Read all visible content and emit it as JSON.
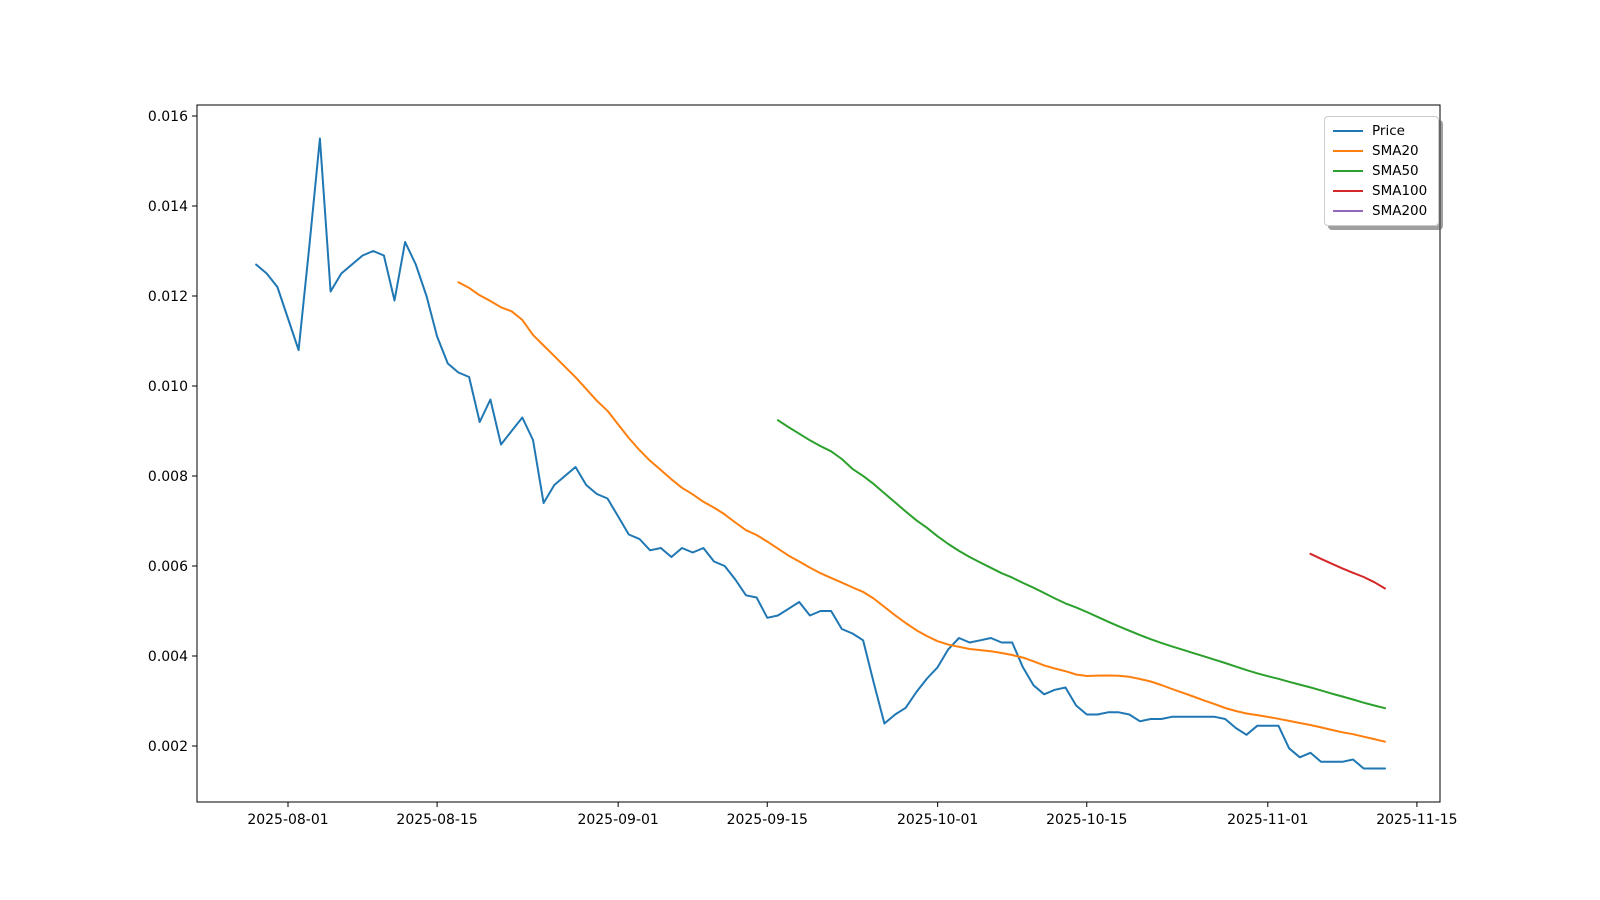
{
  "figure": {
    "background": "#ffffff",
    "axis_color": "#000000"
  },
  "chart_data": {
    "type": "line",
    "title": "",
    "xlabel": "",
    "ylabel": "",
    "grid": false,
    "legend_position": "upper right",
    "ylim": [
      0.00077,
      0.01625
    ],
    "xlim": [
      "2025-07-23",
      "2025-11-17"
    ],
    "x_tick_labels": [
      "2025-08-01",
      "2025-08-15",
      "2025-09-01",
      "2025-09-15",
      "2025-10-01",
      "2025-10-15",
      "2025-11-01",
      "2025-11-15"
    ],
    "y_tick_labels": [
      "0.002",
      "0.004",
      "0.006",
      "0.008",
      "0.010",
      "0.012",
      "0.014",
      "0.016"
    ],
    "x": [
      "2025-07-29",
      "2025-07-30",
      "2025-07-31",
      "2025-08-01",
      "2025-08-02",
      "2025-08-03",
      "2025-08-04",
      "2025-08-05",
      "2025-08-06",
      "2025-08-07",
      "2025-08-08",
      "2025-08-09",
      "2025-08-10",
      "2025-08-11",
      "2025-08-12",
      "2025-08-13",
      "2025-08-14",
      "2025-08-15",
      "2025-08-16",
      "2025-08-17",
      "2025-08-18",
      "2025-08-19",
      "2025-08-20",
      "2025-08-21",
      "2025-08-22",
      "2025-08-23",
      "2025-08-24",
      "2025-08-25",
      "2025-08-26",
      "2025-08-27",
      "2025-08-28",
      "2025-08-29",
      "2025-08-30",
      "2025-08-31",
      "2025-09-01",
      "2025-09-02",
      "2025-09-03",
      "2025-09-04",
      "2025-09-05",
      "2025-09-06",
      "2025-09-07",
      "2025-09-08",
      "2025-09-09",
      "2025-09-10",
      "2025-09-11",
      "2025-09-12",
      "2025-09-13",
      "2025-09-14",
      "2025-09-15",
      "2025-09-16",
      "2025-09-17",
      "2025-09-18",
      "2025-09-19",
      "2025-09-20",
      "2025-09-21",
      "2025-09-22",
      "2025-09-23",
      "2025-09-24",
      "2025-09-25",
      "2025-09-26",
      "2025-09-27",
      "2025-09-28",
      "2025-09-29",
      "2025-09-30",
      "2025-10-01",
      "2025-10-02",
      "2025-10-03",
      "2025-10-04",
      "2025-10-05",
      "2025-10-06",
      "2025-10-07",
      "2025-10-08",
      "2025-10-09",
      "2025-10-10",
      "2025-10-11",
      "2025-10-12",
      "2025-10-13",
      "2025-10-14",
      "2025-10-15",
      "2025-10-16",
      "2025-10-17",
      "2025-10-18",
      "2025-10-19",
      "2025-10-20",
      "2025-10-21",
      "2025-10-22",
      "2025-10-23",
      "2025-10-24",
      "2025-10-25",
      "2025-10-26",
      "2025-10-27",
      "2025-10-28",
      "2025-10-29",
      "2025-10-30",
      "2025-10-31",
      "2025-11-01",
      "2025-11-02",
      "2025-11-03",
      "2025-11-04",
      "2025-11-05",
      "2025-11-06",
      "2025-11-07",
      "2025-11-08",
      "2025-11-09",
      "2025-11-10",
      "2025-11-11",
      "2025-11-12"
    ],
    "series": [
      {
        "name": "Price",
        "color": "#1f77b4",
        "kind": "price",
        "values": [
          0.0127,
          0.0125,
          0.0122,
          0.0115,
          0.0108,
          0.0131,
          0.0155,
          0.0121,
          0.0125,
          0.0127,
          0.0129,
          0.013,
          0.0129,
          0.0119,
          0.0132,
          0.0127,
          0.012,
          0.0111,
          0.0105,
          0.0103,
          0.0102,
          0.0092,
          0.0097,
          0.0087,
          0.009,
          0.0093,
          0.0088,
          0.0074,
          0.0078,
          0.008,
          0.0082,
          0.0078,
          0.0076,
          0.0075,
          0.0071,
          0.0067,
          0.0066,
          0.00635,
          0.0064,
          0.0062,
          0.0064,
          0.0063,
          0.0064,
          0.0061,
          0.006,
          0.0057,
          0.00535,
          0.0053,
          0.00485,
          0.0049,
          0.00505,
          0.0052,
          0.0049,
          0.005,
          0.005,
          0.0046,
          0.0045,
          0.00435,
          0.0034,
          0.0025,
          0.0027,
          0.00285,
          0.0032,
          0.0035,
          0.00375,
          0.00415,
          0.0044,
          0.0043,
          0.00435,
          0.0044,
          0.0043,
          0.0043,
          0.00375,
          0.00335,
          0.00315,
          0.00325,
          0.0033,
          0.0029,
          0.0027,
          0.0027,
          0.00275,
          0.00275,
          0.0027,
          0.00255,
          0.0026,
          0.0026,
          0.00265,
          0.00265,
          0.00265,
          0.00265,
          0.00265,
          0.0026,
          0.0024,
          0.00225,
          0.00245,
          0.00245,
          0.00245,
          0.00195,
          0.00175,
          0.00185,
          0.00165,
          0.00165,
          0.00165,
          0.0017,
          0.0015,
          0.0015,
          0.0015
        ]
      },
      {
        "name": "SMA20",
        "color": "#ff7f0e",
        "kind": "sma",
        "window": 20
      },
      {
        "name": "SMA50",
        "color": "#2ca02c",
        "kind": "sma",
        "window": 50
      },
      {
        "name": "SMA100",
        "color": "#d62728",
        "kind": "sma",
        "window": 100
      },
      {
        "name": "SMA200",
        "color": "#9467bd",
        "kind": "sma",
        "window": 200
      }
    ]
  }
}
